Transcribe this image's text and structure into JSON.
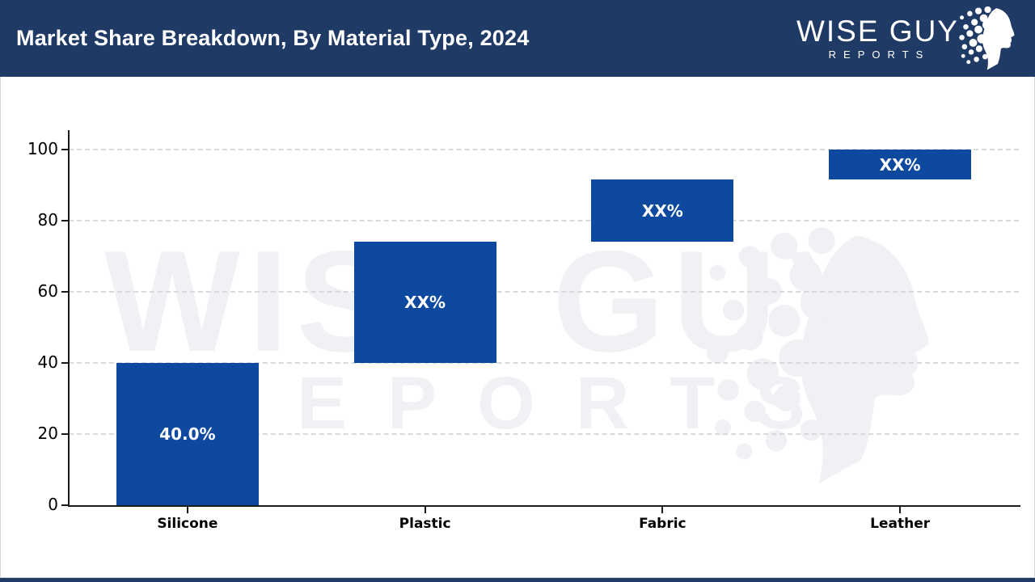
{
  "header": {
    "title": "Market Share Breakdown, By Material Type, 2024",
    "bg_color": "#203a66",
    "logo": {
      "line1": "WISE GUY",
      "line2": "REPORTS"
    }
  },
  "watermark": {
    "line1": "WISE GUY",
    "line2": "REPORTS"
  },
  "chart_data": {
    "type": "bar",
    "variant": "waterfall",
    "title": "Market Share Breakdown, By Material Type, 2024",
    "categories": [
      "Silicone",
      "Plastic",
      "Fabric",
      "Leather"
    ],
    "segments": [
      {
        "category": "Silicone",
        "start": 0,
        "end": 40,
        "label": "40.0%"
      },
      {
        "category": "Plastic",
        "start": 40,
        "end": 74,
        "label": "XX%"
      },
      {
        "category": "Fabric",
        "start": 74,
        "end": 91.5,
        "label": "XX%"
      },
      {
        "category": "Leather",
        "start": 91.5,
        "end": 100,
        "label": "XX%"
      }
    ],
    "ylim": [
      0,
      100
    ],
    "yticks": [
      0,
      20,
      40,
      60,
      80,
      100
    ],
    "xlabel": "",
    "ylabel": "",
    "legend": "none",
    "grid": {
      "axis": "y",
      "style": "dashed",
      "color": "#d9d9d9"
    },
    "bar_color": "#0d4a9f",
    "axis_color": "#1a1a1a"
  }
}
